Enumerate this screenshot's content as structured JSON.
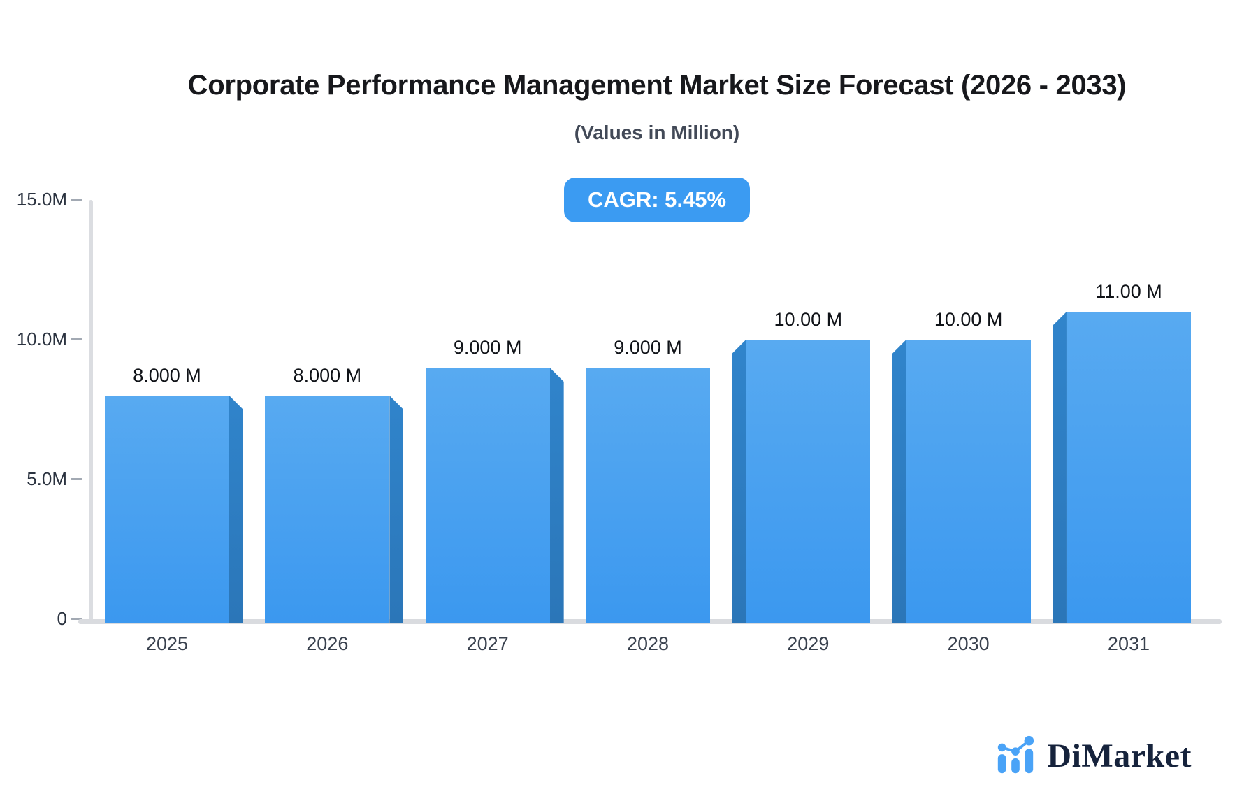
{
  "title": "Corporate Performance Management Market Size Forecast (2026 - 2033)",
  "subtitle": "(Values in Million)",
  "badge": {
    "label": "CAGR: 5.45%"
  },
  "brand": {
    "name": "DiMarket",
    "icon": "bar-chart-with-trend-dots-icon"
  },
  "colors": {
    "accent": "#3b9bf2",
    "bar_top": "#58aaf1",
    "bar_bottom": "#3b98ef",
    "bar_side_top": "#3084cb",
    "bar_side_bottom": "#2b76b8",
    "axis": "#d9dbdf",
    "brand_text": "#16233c"
  },
  "chart_data": {
    "type": "bar",
    "title": "Corporate Performance Management Market Size Forecast (2026 - 2033)",
    "subtitle": "(Values in Million)",
    "unit": "Million",
    "categories": [
      "2025",
      "2026",
      "2027",
      "2028",
      "2029",
      "2030",
      "2031"
    ],
    "values": [
      8,
      8,
      9,
      9,
      10,
      10,
      11
    ],
    "value_labels": [
      "8.000 M",
      "8.000 M",
      "9.000 M",
      "9.000 M",
      "10.00 M",
      "10.00 M",
      "11.00 M"
    ],
    "xlabel": "",
    "ylabel": "",
    "ylim": [
      0,
      15
    ],
    "yticks": [
      {
        "value": 0,
        "label": "0"
      },
      {
        "value": 5,
        "label": "5.0M"
      },
      {
        "value": 10,
        "label": "10.0M"
      },
      {
        "value": 15,
        "label": "15.0M"
      }
    ],
    "grid": false,
    "legend": false,
    "style": "3d-extruded-blue-bars",
    "annotations": [
      "CAGR: 5.45%"
    ]
  }
}
